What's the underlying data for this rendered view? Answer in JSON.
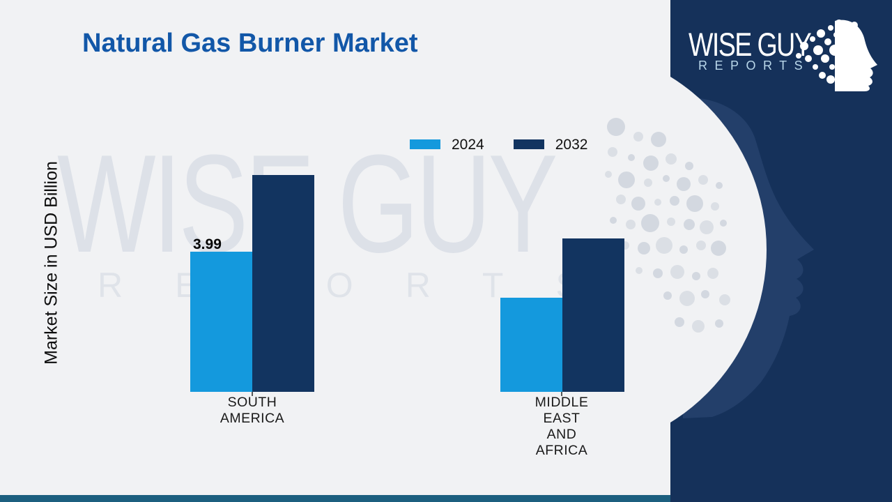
{
  "page": {
    "title": "Natural Gas Burner Market"
  },
  "colors": {
    "title": "#1257a8",
    "bar_2024": "#1499dd",
    "bar_2032": "#123460",
    "panel_navy": "#15315a",
    "bottom_strip": "#1c5f7f",
    "background": "#f1f2f4",
    "watermark_gray": "#dde1e8"
  },
  "watermark": {
    "line1": "WISE GUY",
    "line2": "REPORTS"
  },
  "logo": {
    "line1": "WISE GUY",
    "line2": "REPORTS"
  },
  "legend": {
    "items": [
      {
        "label": "2024",
        "color": "#1499dd"
      },
      {
        "label": "2032",
        "color": "#123460"
      }
    ]
  },
  "chart_data": {
    "type": "bar",
    "title": "Natural Gas Burner Market",
    "ylabel": "Market Size in USD Billion",
    "xlabel": "",
    "categories": [
      "SOUTH\nAMERICA",
      "MIDDLE\nEAST\nAND\nAFRICA"
    ],
    "series": [
      {
        "name": "2024",
        "color": "#1499dd",
        "values": [
          3.99,
          2.68
        ],
        "data_labels": [
          "3.99",
          ""
        ]
      },
      {
        "name": "2032",
        "color": "#123460",
        "values": [
          6.17,
          4.37
        ],
        "data_labels": [
          "",
          ""
        ]
      }
    ],
    "ylim": [
      0,
      6.6
    ],
    "grid": false,
    "legend_position": "top-right",
    "visible_value_labels": [
      "3.99"
    ]
  }
}
